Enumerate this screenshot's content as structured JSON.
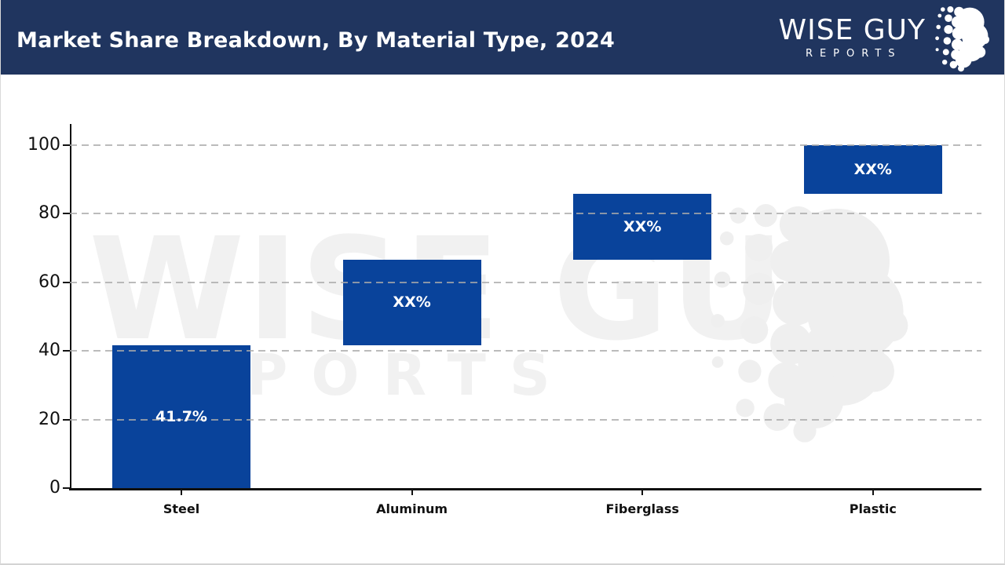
{
  "header": {
    "title": "Market Share Breakdown, By Material Type, 2024",
    "logo": {
      "name": "WISE GUY",
      "subtitle": "REPORTS"
    }
  },
  "watermark": {
    "line1": "WISE GU",
    "line2": "REPORTS"
  },
  "chart_data": {
    "type": "bar",
    "subtype": "waterfall",
    "title": "Market Share Breakdown, By Material Type, 2024",
    "categories": [
      "Steel",
      "Aluminum",
      "Fiberglass",
      "Plastic"
    ],
    "segments": [
      {
        "category": "Steel",
        "start": 0,
        "end": 41.7,
        "label": "41.7%"
      },
      {
        "category": "Aluminum",
        "start": 41.7,
        "end": 66.7,
        "label": "XX%"
      },
      {
        "category": "Fiberglass",
        "start": 66.7,
        "end": 85.7,
        "label": "XX%"
      },
      {
        "category": "Plastic",
        "start": 85.7,
        "end": 100.0,
        "label": "XX%"
      }
    ],
    "ylabel": "",
    "xlabel": "",
    "ylim": [
      0,
      105
    ],
    "yticks": [
      0,
      20,
      40,
      60,
      80,
      100
    ],
    "grid": "horizontal-dashed",
    "legend": "none",
    "bar_color": "#09439b",
    "bar_label_color": "#ffffff",
    "grid_color": "#c9c9c9",
    "axis_color": "#111111",
    "header_bg": "#20355f",
    "watermark_color": "#f1f1f1"
  }
}
